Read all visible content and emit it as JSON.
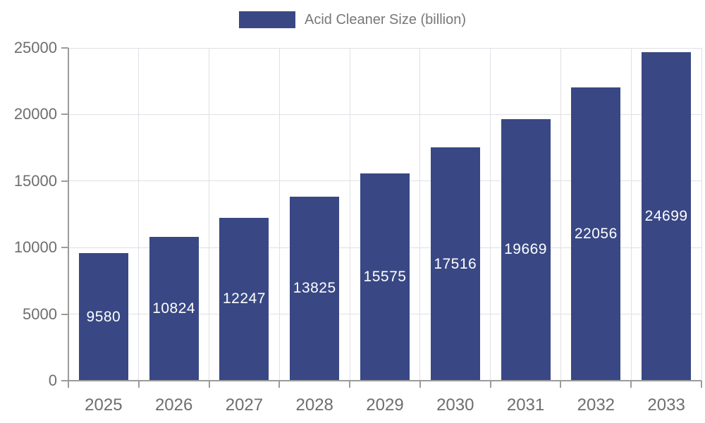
{
  "chart_data": {
    "type": "bar",
    "title": "Acid Cleaner Size (billion)",
    "categories": [
      "2025",
      "2026",
      "2027",
      "2028",
      "2029",
      "2030",
      "2031",
      "2032",
      "2033"
    ],
    "values": [
      9580,
      10824,
      12247,
      13825,
      15575,
      17516,
      19669,
      22056,
      24699
    ],
    "xlabel": "",
    "ylabel": "",
    "ylim": [
      0,
      25000
    ],
    "yticks": [
      0,
      5000,
      10000,
      15000,
      20000,
      25000
    ],
    "grid": "on",
    "legend_position": "top",
    "value_labels": "inside-center-white",
    "colors": {
      "bar": "#394884",
      "grid": "#e0e0e6",
      "axis_line": "#9b9b9b",
      "axis_text": "#6e6e6e",
      "legend_text": "#76787b",
      "value_text": "#ffffff"
    }
  }
}
